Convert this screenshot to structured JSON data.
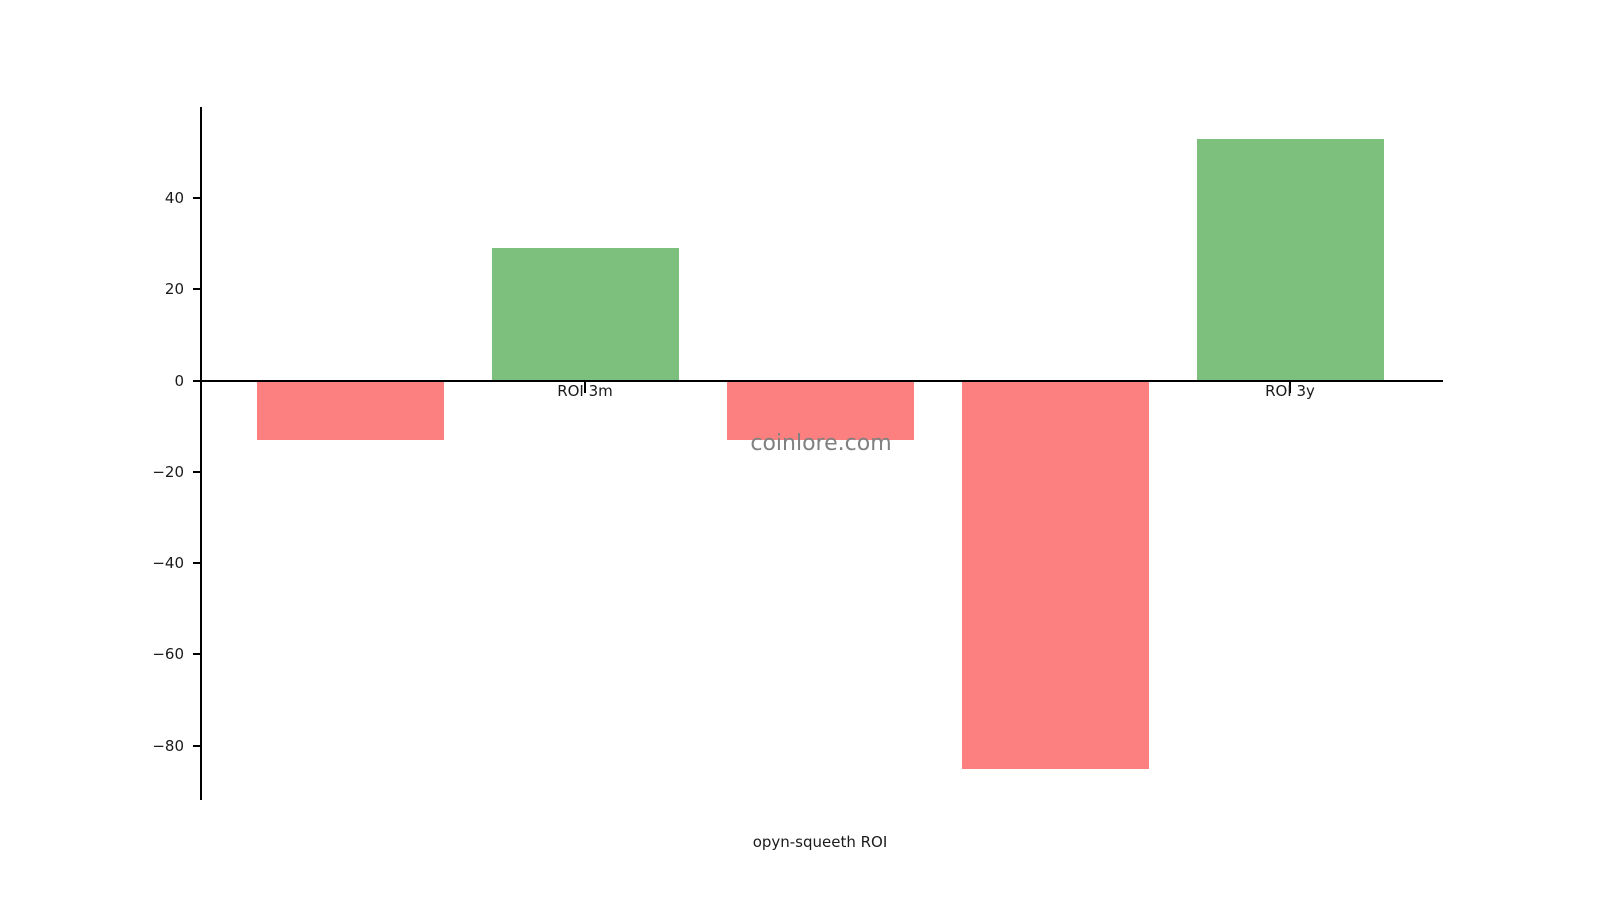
{
  "chart_data": {
    "type": "bar",
    "xlabel": "opyn-squeeth ROI",
    "watermark": "coinlore.com",
    "categories": [
      "",
      "ROI 3m",
      "",
      "",
      "ROI 3y"
    ],
    "values": [
      -13,
      29,
      -13,
      -85,
      53
    ],
    "visible_xtick_labels": [
      "ROI 3m",
      "ROI 3y"
    ],
    "yticks": [
      40,
      20,
      0,
      -20,
      -40,
      -60,
      -80
    ],
    "ylim": [
      -91.9,
      59.9
    ],
    "grid": false,
    "legend": "none",
    "colors": {
      "positive": "#7dbf7d",
      "negative": "#fc8080",
      "axis": "#000000",
      "tick_label": "#1a1a1a",
      "watermark": "#808080",
      "background": "#ffffff"
    }
  }
}
